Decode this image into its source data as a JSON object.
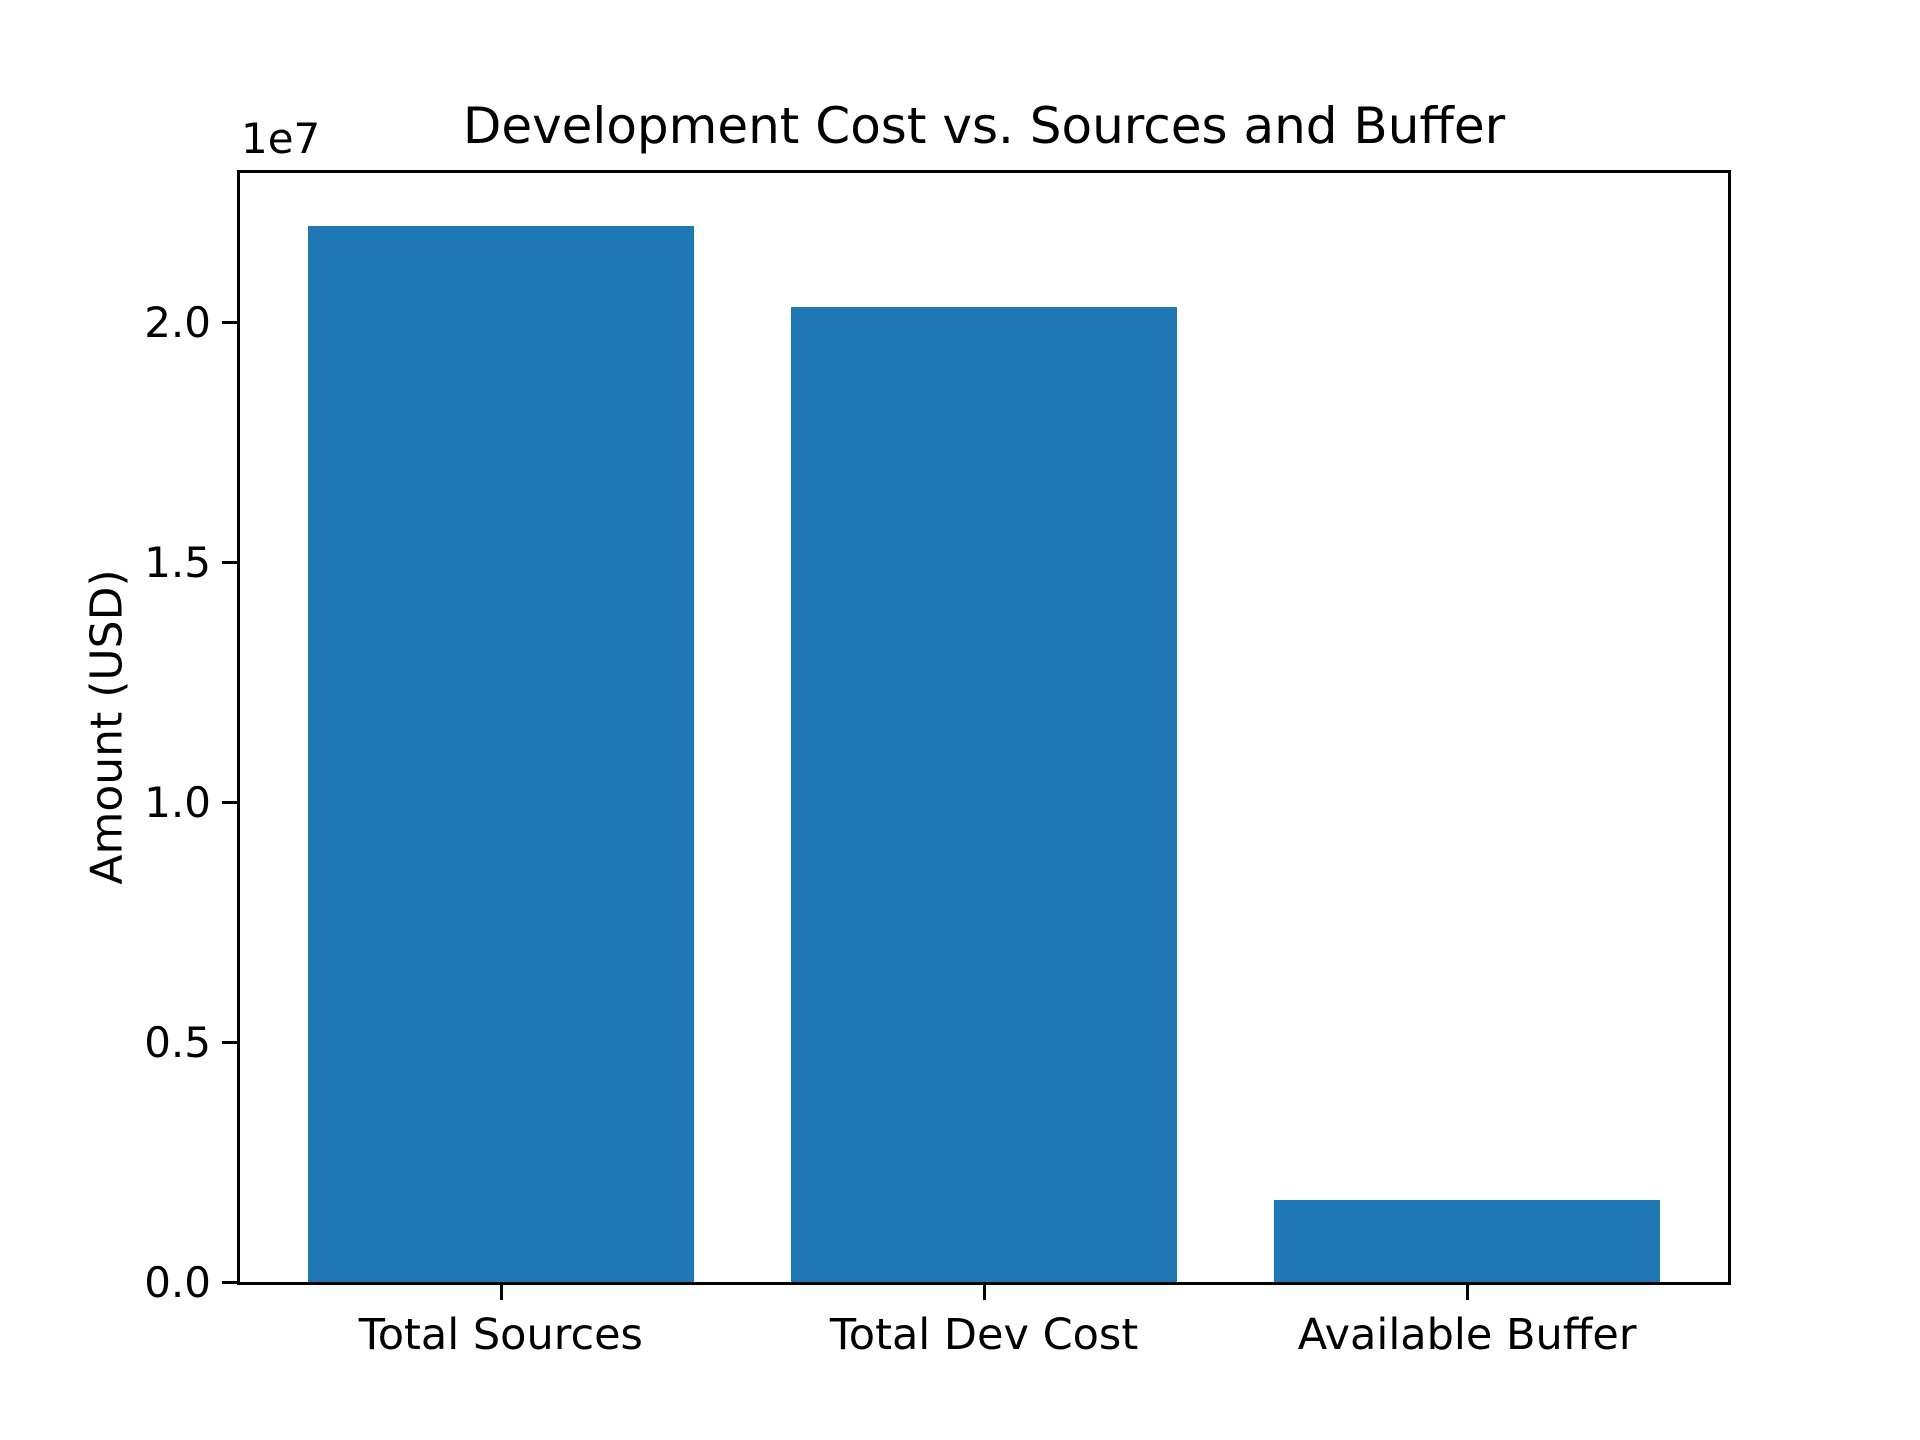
{
  "chart_data": {
    "type": "bar",
    "title": "Development Cost vs. Sources and Buffer",
    "categories": [
      "Total Sources",
      "Total Dev Cost",
      "Available Buffer"
    ],
    "values": [
      22000000,
      20300000,
      1700000
    ],
    "xlabel": "",
    "ylabel": "Amount (USD)",
    "offset_text": "1e7",
    "bar_color": "#1f77b4",
    "bar_width": 0.8,
    "ylim": [
      0,
      23100000
    ],
    "yticks": {
      "values": [
        0,
        5000000,
        10000000,
        15000000,
        20000000
      ],
      "labels": [
        "0.0",
        "0.5",
        "1.0",
        "1.5",
        "2.0"
      ]
    },
    "grid": false,
    "legend": null,
    "spine_color": "#000000",
    "text_color": "#000000",
    "background_color": "#ffffff"
  }
}
